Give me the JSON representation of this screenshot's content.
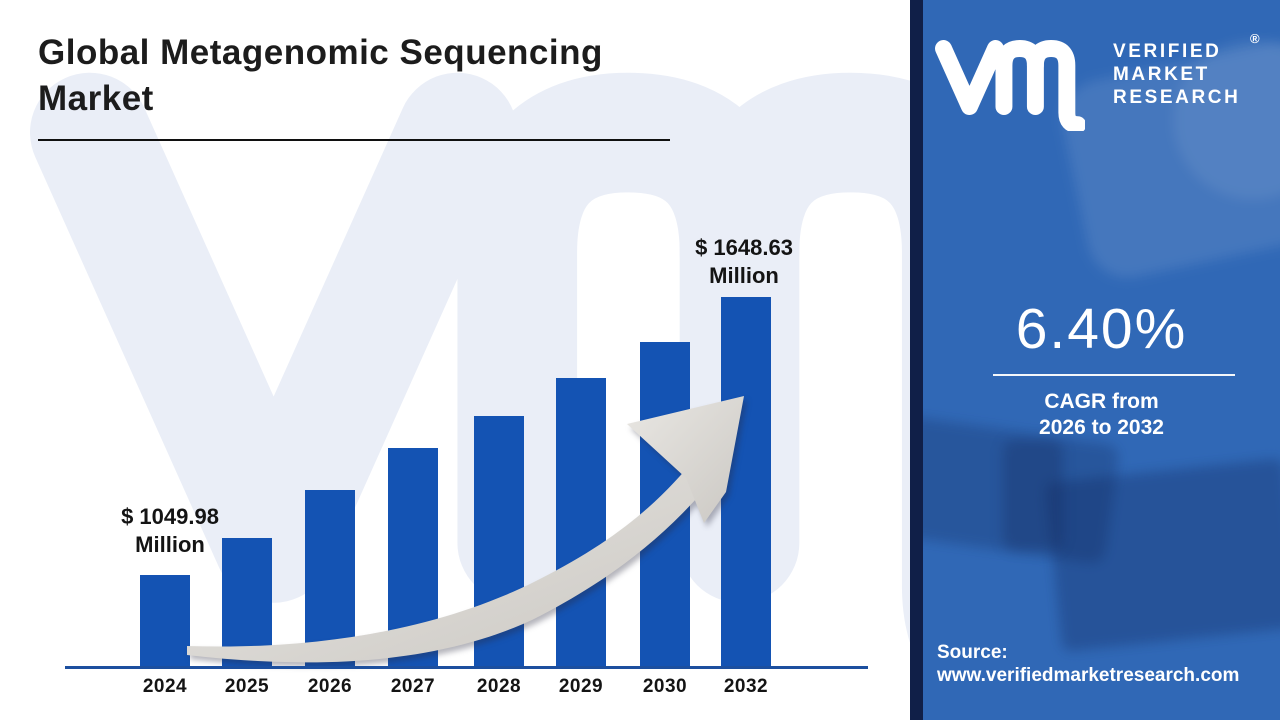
{
  "header": {
    "title": "Global Metagenomic Sequencing Market"
  },
  "chart_data": {
    "type": "bar",
    "title": "Global Metagenomic Sequencing Market",
    "unit": "USD Million",
    "categories": [
      "2024",
      "2025",
      "2026",
      "2027",
      "2028",
      "2029",
      "2030",
      "2032"
    ],
    "values": [
      1049.98,
      null,
      null,
      null,
      null,
      null,
      null,
      1648.63
    ],
    "bar_heights_pct": [
      25.1,
      35.0,
      48.0,
      59.3,
      67.9,
      78.2,
      87.9,
      100
    ],
    "annotations": [
      {
        "target": "2024",
        "line1": "$ 1049.98",
        "line2": "Million"
      },
      {
        "target": "2032",
        "line1": "$ 1648.63",
        "line2": "Million"
      }
    ],
    "grid": false,
    "legend": false,
    "bar_color": "#1453b3",
    "axis_color": "#1c4f9f",
    "trend_arrow": "silver-swoosh-up-right"
  },
  "panel": {
    "background": "#3068b6",
    "accent_strip_color": "#101f48",
    "logo": {
      "monogram": "vm-monogram",
      "lines": [
        "VERIFIED",
        "MARKET",
        "RESEARCH"
      ],
      "registered": "®"
    },
    "cagr": {
      "value": "6.40%",
      "caption_line1": "CAGR from",
      "caption_line2": "2026 to 2032"
    },
    "source": {
      "label": "Source:",
      "url": "www.verifiedmarketresearch.com"
    }
  },
  "watermark": {
    "name": "vm-monogram-watermark",
    "color": "#eaeef7"
  }
}
